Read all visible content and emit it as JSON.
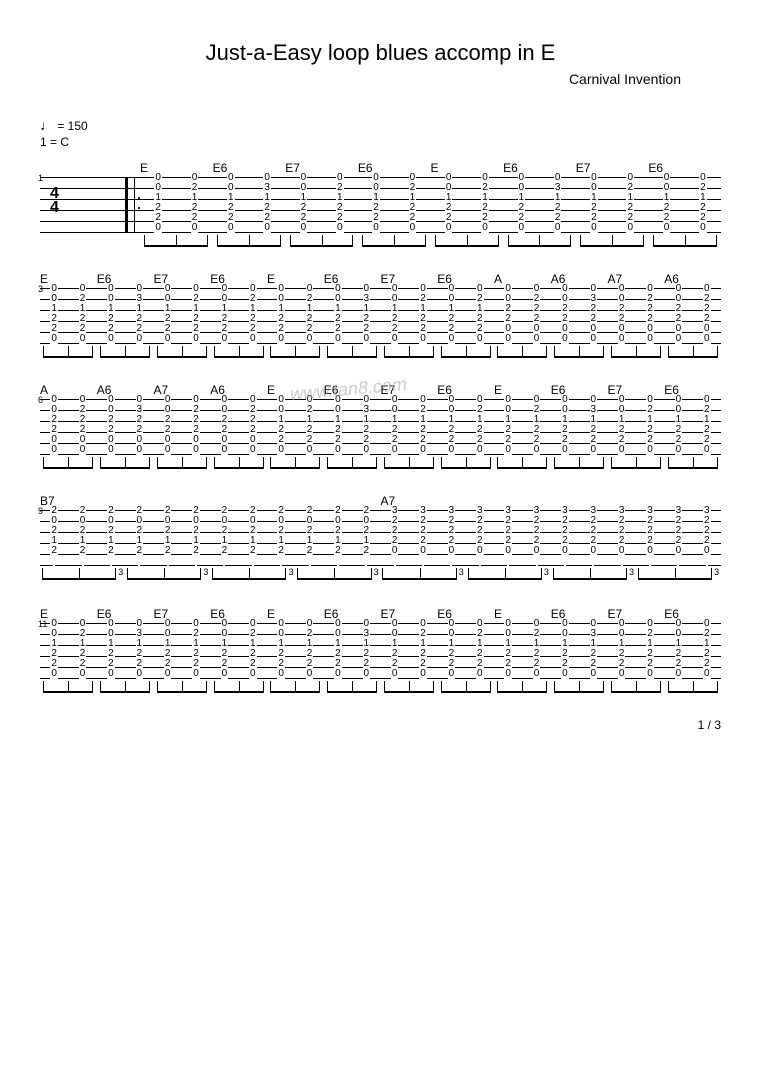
{
  "title": "Just-a-Easy loop blues accomp in E",
  "author": "Carnival Invention",
  "tempo": "= 150",
  "key": "1 = C",
  "time_sig_top": "4",
  "time_sig_bot": "4",
  "page": "1 / 3",
  "watermark": "www.tan8.com",
  "staff_lines": 6,
  "systems": [
    {
      "measure_num": "1",
      "has_clef": true,
      "chords": [
        "E",
        "E6",
        "E7",
        "E6",
        "E",
        "E6",
        "E7",
        "E6"
      ],
      "columns": [
        [
          "0",
          "0",
          "1",
          "2",
          "2",
          "0"
        ],
        [
          "0",
          "2",
          "1",
          "2",
          "2",
          "0"
        ],
        [
          "0",
          "0",
          "1",
          "2",
          "2",
          "0"
        ],
        [
          "0",
          "3",
          "1",
          "2",
          "2",
          "0"
        ],
        [
          "0",
          "0",
          "1",
          "2",
          "2",
          "0"
        ],
        [
          "0",
          "2",
          "1",
          "2",
          "2",
          "0"
        ],
        [
          "0",
          "0",
          "1",
          "2",
          "2",
          "0"
        ],
        [
          "0",
          "2",
          "1",
          "2",
          "2",
          "0"
        ],
        [
          "0",
          "0",
          "1",
          "2",
          "2",
          "0"
        ],
        [
          "0",
          "2",
          "1",
          "2",
          "2",
          "0"
        ],
        [
          "0",
          "0",
          "1",
          "2",
          "2",
          "0"
        ],
        [
          "0",
          "3",
          "1",
          "2",
          "2",
          "0"
        ],
        [
          "0",
          "0",
          "1",
          "2",
          "2",
          "0"
        ],
        [
          "0",
          "2",
          "1",
          "2",
          "2",
          "0"
        ],
        [
          "0",
          "0",
          "1",
          "2",
          "2",
          "0"
        ],
        [
          "0",
          "2",
          "1",
          "2",
          "2",
          "0"
        ]
      ],
      "beam_groups": 8
    },
    {
      "measure_num": "3",
      "chords": [
        "E",
        "E6",
        "E7",
        "E6",
        "E",
        "E6",
        "E7",
        "E6",
        "A",
        "A6",
        "A7",
        "A6"
      ],
      "columns": [
        [
          "0",
          "0",
          "1",
          "2",
          "2",
          "0"
        ],
        [
          "0",
          "2",
          "1",
          "2",
          "2",
          "0"
        ],
        [
          "0",
          "0",
          "1",
          "2",
          "2",
          "0"
        ],
        [
          "0",
          "3",
          "1",
          "2",
          "2",
          "0"
        ],
        [
          "0",
          "0",
          "1",
          "2",
          "2",
          "0"
        ],
        [
          "0",
          "2",
          "1",
          "2",
          "2",
          "0"
        ],
        [
          "0",
          "0",
          "1",
          "2",
          "2",
          "0"
        ],
        [
          "0",
          "2",
          "1",
          "2",
          "2",
          "0"
        ],
        [
          "0",
          "0",
          "1",
          "2",
          "2",
          "0"
        ],
        [
          "0",
          "2",
          "1",
          "2",
          "2",
          "0"
        ],
        [
          "0",
          "0",
          "1",
          "2",
          "2",
          "0"
        ],
        [
          "0",
          "3",
          "1",
          "2",
          "2",
          "0"
        ],
        [
          "0",
          "0",
          "1",
          "2",
          "2",
          "0"
        ],
        [
          "0",
          "2",
          "1",
          "2",
          "2",
          "0"
        ],
        [
          "0",
          "0",
          "1",
          "2",
          "2",
          "0"
        ],
        [
          "0",
          "2",
          "1",
          "2",
          "2",
          "0"
        ],
        [
          "0",
          "0",
          "2",
          "2",
          "0",
          "0"
        ],
        [
          "0",
          "2",
          "2",
          "2",
          "0",
          "0"
        ],
        [
          "0",
          "0",
          "2",
          "2",
          "0",
          "0"
        ],
        [
          "0",
          "3",
          "2",
          "2",
          "0",
          "0"
        ],
        [
          "0",
          "0",
          "2",
          "2",
          "0",
          "0"
        ],
        [
          "0",
          "2",
          "2",
          "2",
          "0",
          "0"
        ],
        [
          "0",
          "0",
          "2",
          "2",
          "0",
          "0"
        ],
        [
          "0",
          "2",
          "2",
          "2",
          "0",
          "0"
        ]
      ],
      "beam_groups": 12
    },
    {
      "measure_num": "6",
      "chords": [
        "A",
        "A6",
        "A7",
        "A6",
        "E",
        "E6",
        "E7",
        "E6",
        "E",
        "E6",
        "E7",
        "E6"
      ],
      "columns": [
        [
          "0",
          "0",
          "2",
          "2",
          "0",
          "0"
        ],
        [
          "0",
          "2",
          "2",
          "2",
          "0",
          "0"
        ],
        [
          "0",
          "0",
          "2",
          "2",
          "0",
          "0"
        ],
        [
          "0",
          "3",
          "2",
          "2",
          "0",
          "0"
        ],
        [
          "0",
          "0",
          "2",
          "2",
          "0",
          "0"
        ],
        [
          "0",
          "2",
          "2",
          "2",
          "0",
          "0"
        ],
        [
          "0",
          "0",
          "2",
          "2",
          "0",
          "0"
        ],
        [
          "0",
          "2",
          "2",
          "2",
          "0",
          "0"
        ],
        [
          "0",
          "0",
          "1",
          "2",
          "2",
          "0"
        ],
        [
          "0",
          "2",
          "1",
          "2",
          "2",
          "0"
        ],
        [
          "0",
          "0",
          "1",
          "2",
          "2",
          "0"
        ],
        [
          "0",
          "3",
          "1",
          "2",
          "2",
          "0"
        ],
        [
          "0",
          "0",
          "1",
          "2",
          "2",
          "0"
        ],
        [
          "0",
          "2",
          "1",
          "2",
          "2",
          "0"
        ],
        [
          "0",
          "0",
          "1",
          "2",
          "2",
          "0"
        ],
        [
          "0",
          "2",
          "1",
          "2",
          "2",
          "0"
        ],
        [
          "0",
          "0",
          "1",
          "2",
          "2",
          "0"
        ],
        [
          "0",
          "2",
          "1",
          "2",
          "2",
          "0"
        ],
        [
          "0",
          "0",
          "1",
          "2",
          "2",
          "0"
        ],
        [
          "0",
          "3",
          "1",
          "2",
          "2",
          "0"
        ],
        [
          "0",
          "0",
          "1",
          "2",
          "2",
          "0"
        ],
        [
          "0",
          "2",
          "1",
          "2",
          "2",
          "0"
        ],
        [
          "0",
          "0",
          "1",
          "2",
          "2",
          "0"
        ],
        [
          "0",
          "2",
          "1",
          "2",
          "2",
          "0"
        ]
      ],
      "beam_groups": 12,
      "watermark_pos": true
    },
    {
      "measure_num": "9",
      "chords": [
        "B7",
        "",
        "",
        "",
        "",
        "",
        "A7",
        "",
        "",
        "",
        "",
        ""
      ],
      "chord_span": [
        6,
        6
      ],
      "columns": [
        [
          "2",
          "0",
          "2",
          "1",
          "2",
          ""
        ],
        [
          "2",
          "0",
          "2",
          "1",
          "2",
          ""
        ],
        [
          "2",
          "0",
          "2",
          "1",
          "2",
          ""
        ],
        [
          "2",
          "0",
          "2",
          "1",
          "2",
          ""
        ],
        [
          "2",
          "0",
          "2",
          "1",
          "2",
          ""
        ],
        [
          "2",
          "0",
          "2",
          "1",
          "2",
          ""
        ],
        [
          "2",
          "0",
          "2",
          "1",
          "2",
          ""
        ],
        [
          "2",
          "0",
          "2",
          "1",
          "2",
          ""
        ],
        [
          "2",
          "0",
          "2",
          "1",
          "2",
          ""
        ],
        [
          "2",
          "0",
          "2",
          "1",
          "2",
          ""
        ],
        [
          "2",
          "0",
          "2",
          "1",
          "2",
          ""
        ],
        [
          "2",
          "0",
          "2",
          "1",
          "2",
          ""
        ],
        [
          "3",
          "2",
          "2",
          "2",
          "0",
          ""
        ],
        [
          "3",
          "2",
          "2",
          "2",
          "0",
          ""
        ],
        [
          "3",
          "2",
          "2",
          "2",
          "0",
          ""
        ],
        [
          "3",
          "2",
          "2",
          "2",
          "0",
          ""
        ],
        [
          "3",
          "2",
          "2",
          "2",
          "0",
          ""
        ],
        [
          "3",
          "2",
          "2",
          "2",
          "0",
          ""
        ],
        [
          "3",
          "2",
          "2",
          "2",
          "0",
          ""
        ],
        [
          "3",
          "2",
          "2",
          "2",
          "0",
          ""
        ],
        [
          "3",
          "2",
          "2",
          "2",
          "0",
          ""
        ],
        [
          "3",
          "2",
          "2",
          "2",
          "0",
          ""
        ],
        [
          "3",
          "2",
          "2",
          "2",
          "0",
          ""
        ],
        [
          "3",
          "2",
          "2",
          "2",
          "0",
          ""
        ]
      ],
      "beam_groups": 8,
      "triplets": true
    },
    {
      "measure_num": "11",
      "chords": [
        "E",
        "E6",
        "E7",
        "E6",
        "E",
        "E6",
        "E7",
        "E6",
        "E",
        "E6",
        "E7",
        "E6"
      ],
      "columns": [
        [
          "0",
          "0",
          "1",
          "2",
          "2",
          "0"
        ],
        [
          "0",
          "2",
          "1",
          "2",
          "2",
          "0"
        ],
        [
          "0",
          "0",
          "1",
          "2",
          "2",
          "0"
        ],
        [
          "0",
          "3",
          "1",
          "2",
          "2",
          "0"
        ],
        [
          "0",
          "0",
          "1",
          "2",
          "2",
          "0"
        ],
        [
          "0",
          "2",
          "1",
          "2",
          "2",
          "0"
        ],
        [
          "0",
          "0",
          "1",
          "2",
          "2",
          "0"
        ],
        [
          "0",
          "2",
          "1",
          "2",
          "2",
          "0"
        ],
        [
          "0",
          "0",
          "1",
          "2",
          "2",
          "0"
        ],
        [
          "0",
          "2",
          "1",
          "2",
          "2",
          "0"
        ],
        [
          "0",
          "0",
          "1",
          "2",
          "2",
          "0"
        ],
        [
          "0",
          "3",
          "1",
          "2",
          "2",
          "0"
        ],
        [
          "0",
          "0",
          "1",
          "2",
          "2",
          "0"
        ],
        [
          "0",
          "2",
          "1",
          "2",
          "2",
          "0"
        ],
        [
          "0",
          "0",
          "1",
          "2",
          "2",
          "0"
        ],
        [
          "0",
          "2",
          "1",
          "2",
          "2",
          "0"
        ],
        [
          "0",
          "0",
          "1",
          "2",
          "2",
          "0"
        ],
        [
          "0",
          "2",
          "1",
          "2",
          "2",
          "0"
        ],
        [
          "0",
          "0",
          "1",
          "2",
          "2",
          "0"
        ],
        [
          "0",
          "3",
          "1",
          "2",
          "2",
          "0"
        ],
        [
          "0",
          "0",
          "1",
          "2",
          "2",
          "0"
        ],
        [
          "0",
          "2",
          "1",
          "2",
          "2",
          "0"
        ],
        [
          "0",
          "0",
          "1",
          "2",
          "2",
          "0"
        ],
        [
          "0",
          "2",
          "1",
          "2",
          "2",
          "0"
        ]
      ],
      "beam_groups": 12
    }
  ]
}
